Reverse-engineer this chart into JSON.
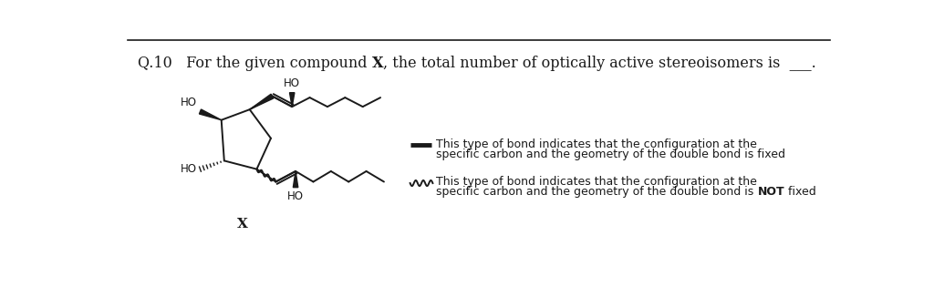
{
  "background_color": "#ffffff",
  "question_text1": "Q.10   For the given compound ",
  "question_bold": "X",
  "question_text2": ", the total number of optically active stereoisomers is  ___.",
  "question_fontsize": 11.5,
  "legend1_line1": "This type of bond indicates that the configuration at the",
  "legend1_line2": "specific carbon and the geometry of the double bond is fixed",
  "legend2_line1": "This type of bond indicates that the configuration at the",
  "legend2_line2": "specific carbon and the geometry of the double bond is ",
  "legend2_bold": "NOT",
  "legend2_end": " fixed",
  "legend_fontsize": 9.0,
  "text_color": "#1a1a1a"
}
